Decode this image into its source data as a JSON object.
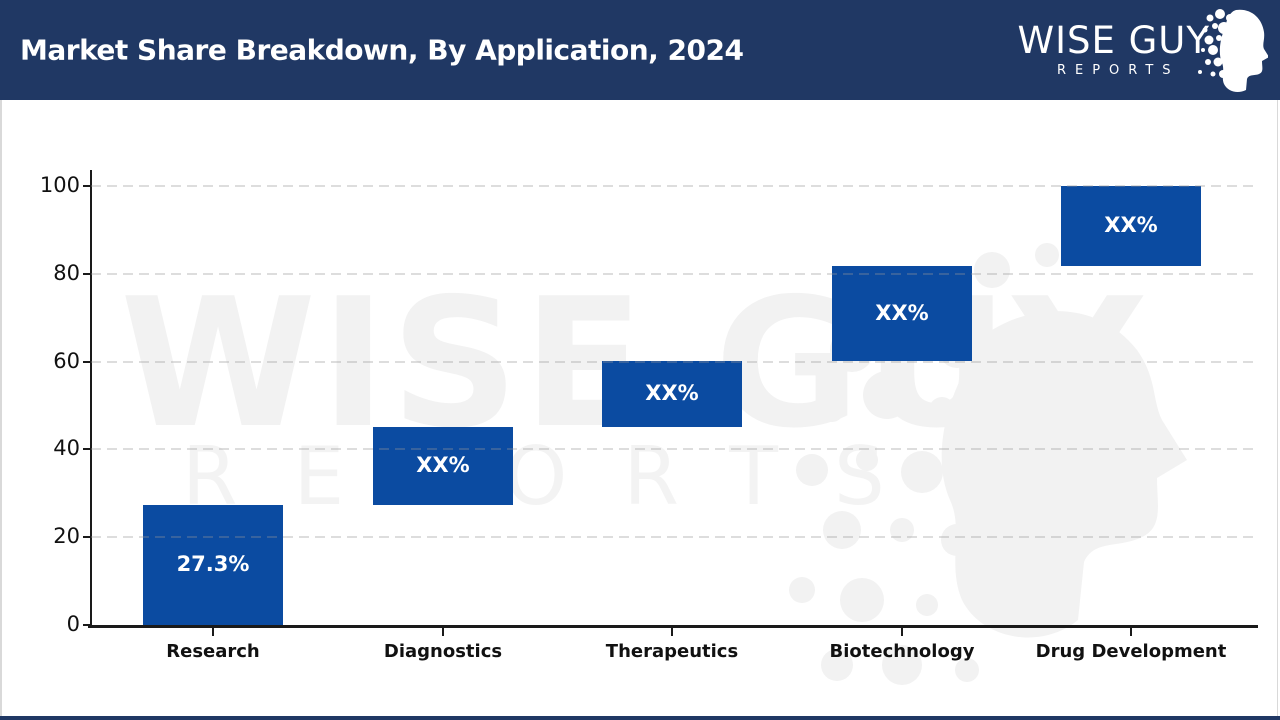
{
  "header": {
    "title": "Market Share Breakdown, By Application, 2024",
    "logo": {
      "line1": "WISE GUY",
      "line2": "REPORTS"
    }
  },
  "watermark": {
    "line1": "WISE GUY",
    "line2": "REPORTS"
  },
  "chart_data": {
    "type": "bar",
    "subtype": "waterfall",
    "title": "Market Share Breakdown, By Application, 2024",
    "xlabel": "",
    "ylabel": "",
    "ylim": [
      0,
      100
    ],
    "yticks": [
      0,
      20,
      40,
      60,
      80,
      100
    ],
    "grid": "dashed-horizontal",
    "legend": "none",
    "categories": [
      "Research",
      "Diagnostics",
      "Therapeutics",
      "Biotechnology",
      "Drug Development"
    ],
    "segments": [
      {
        "category": "Research",
        "start": 0,
        "end": 27.3,
        "label": "27.3%"
      },
      {
        "category": "Diagnostics",
        "start": 27.3,
        "end": 45.2,
        "label": "XX%"
      },
      {
        "category": "Therapeutics",
        "start": 45.2,
        "end": 60.1,
        "label": "XX%"
      },
      {
        "category": "Biotechnology",
        "start": 60.1,
        "end": 81.8,
        "label": "XX%"
      },
      {
        "category": "Drug Development",
        "start": 81.8,
        "end": 100,
        "label": "XX%"
      }
    ],
    "bar_color": "#0b4ba1",
    "bar_label_color": "#ffffff"
  },
  "colors": {
    "header_bg": "#203864",
    "footer_bg": "#203864",
    "watermark": "#f2f2f2",
    "axis": "#1a1a1a"
  }
}
